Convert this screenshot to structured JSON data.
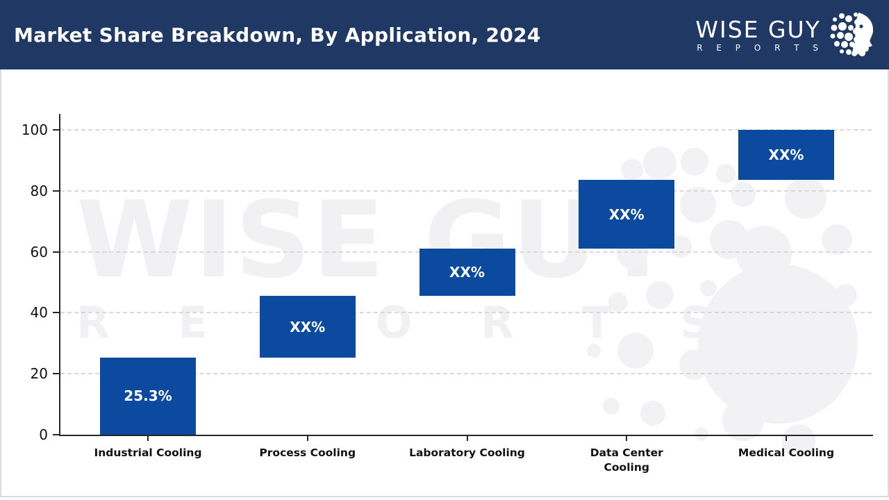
{
  "header": {
    "logo": {
      "line1": "WISE GUY",
      "line2": "R E P O R T S"
    }
  },
  "watermark": {
    "line1": "WISE GUY",
    "line2": "R E P O R T S"
  },
  "colors": {
    "header_bg": "#1f3864",
    "bar": "#0b4a9f",
    "bar_label": "#ffffff",
    "axis": "#262626",
    "grid": "#d8d8d8",
    "watermark": "#f1f1f3"
  },
  "chart_data": {
    "type": "bar",
    "subtype": "waterfall",
    "title": "Market Share Breakdown, By Application, 2024",
    "categories": [
      "Industrial Cooling",
      "Process Cooling",
      "Laboratory Cooling",
      "Data Center Cooling",
      "Medical Cooling"
    ],
    "segments": [
      {
        "category": "Industrial Cooling",
        "start": 0,
        "end": 25.3,
        "label": "25.3%"
      },
      {
        "category": "Process Cooling",
        "start": 25.3,
        "end": 45.5,
        "label": "XX%"
      },
      {
        "category": "Laboratory Cooling",
        "start": 45.5,
        "end": 61.0,
        "label": "XX%"
      },
      {
        "category": "Data Center Cooling",
        "start": 61.0,
        "end": 83.5,
        "label": "XX%"
      },
      {
        "category": "Medical Cooling",
        "start": 83.5,
        "end": 100.0,
        "label": "XX%"
      }
    ],
    "xtick_label_lines": [
      [
        "Industrial Cooling"
      ],
      [
        "Process Cooling"
      ],
      [
        "Laboratory Cooling"
      ],
      [
        "Data Center",
        "Cooling"
      ],
      [
        "Medical Cooling"
      ]
    ],
    "y_ticks": [
      0,
      20,
      40,
      60,
      80,
      100
    ],
    "ylim": [
      0,
      100
    ],
    "xlabel": "",
    "ylabel": "",
    "grid": "horizontal-dashed",
    "legend": "none"
  }
}
